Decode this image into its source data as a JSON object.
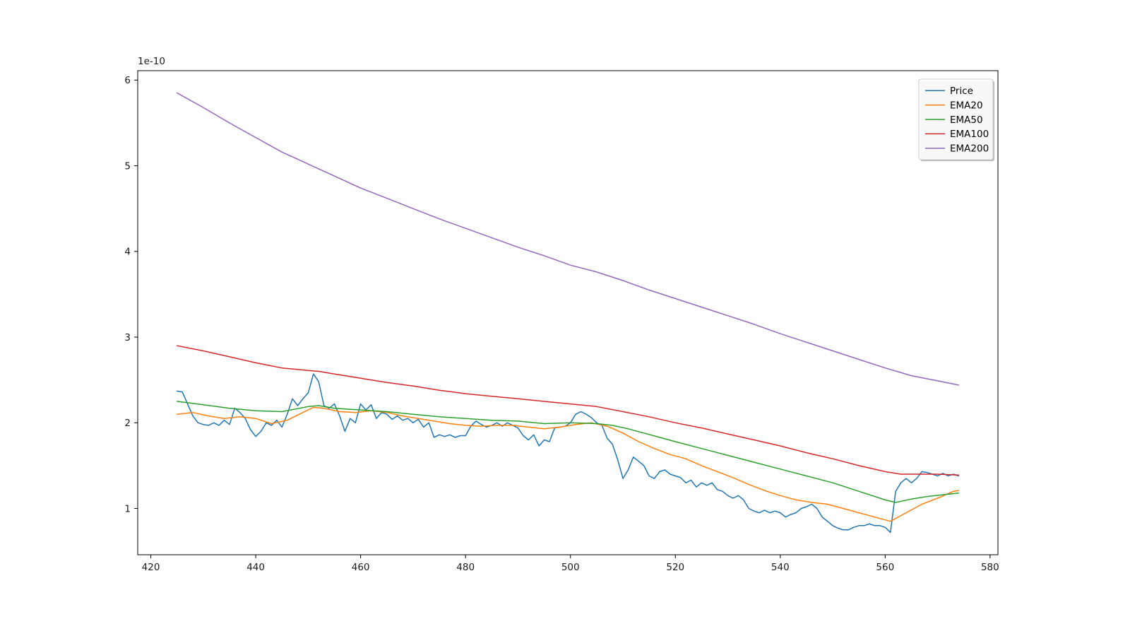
{
  "figure": {
    "background": "#ffffff"
  },
  "chart_data": {
    "type": "line",
    "title": "",
    "xlabel": "",
    "ylabel": "",
    "y_offset_label": "1e-10",
    "xlim": [
      417.5,
      581.5
    ],
    "ylim": [
      0.46,
      6.11
    ],
    "x_ticks": [
      420,
      440,
      460,
      480,
      500,
      520,
      540,
      560,
      580
    ],
    "y_ticks": [
      1,
      2,
      3,
      4,
      5,
      6
    ],
    "grid": false,
    "legend": {
      "position": "upper right",
      "entries": [
        "Price",
        "EMA20",
        "EMA50",
        "EMA100",
        "EMA200"
      ]
    },
    "series": [
      {
        "name": "Price",
        "color": "#1f77b4",
        "x_start": 425,
        "x_step": 1,
        "y": [
          2.37,
          2.36,
          2.22,
          2.08,
          2.0,
          1.98,
          1.97,
          2.0,
          1.97,
          2.03,
          1.98,
          2.17,
          2.12,
          2.05,
          1.92,
          1.84,
          1.9,
          2.0,
          1.97,
          2.03,
          1.95,
          2.1,
          2.28,
          2.2,
          2.28,
          2.35,
          2.57,
          2.48,
          2.2,
          2.17,
          2.22,
          2.08,
          1.9,
          2.05,
          2.0,
          2.22,
          2.15,
          2.21,
          2.05,
          2.12,
          2.1,
          2.04,
          2.08,
          2.03,
          2.05,
          2.0,
          2.04,
          1.95,
          2.0,
          1.83,
          1.86,
          1.84,
          1.86,
          1.83,
          1.85,
          1.85,
          1.96,
          2.02,
          1.98,
          1.95,
          1.97,
          2.0,
          1.96,
          2.0,
          1.97,
          1.94,
          1.85,
          1.8,
          1.86,
          1.73,
          1.8,
          1.78,
          1.94,
          1.95,
          1.96,
          2.0,
          2.1,
          2.13,
          2.1,
          2.06,
          2.0,
          1.97,
          1.82,
          1.75,
          1.57,
          1.35,
          1.45,
          1.6,
          1.55,
          1.5,
          1.38,
          1.35,
          1.43,
          1.45,
          1.4,
          1.38,
          1.36,
          1.3,
          1.33,
          1.25,
          1.3,
          1.27,
          1.3,
          1.22,
          1.2,
          1.15,
          1.12,
          1.15,
          1.1,
          1.0,
          0.97,
          0.95,
          0.98,
          0.95,
          0.97,
          0.95,
          0.9,
          0.93,
          0.95,
          1.0,
          1.02,
          1.05,
          1.0,
          0.9,
          0.85,
          0.8,
          0.77,
          0.75,
          0.75,
          0.78,
          0.8,
          0.8,
          0.82,
          0.8,
          0.8,
          0.78,
          0.72,
          1.2,
          1.3,
          1.35,
          1.3,
          1.35,
          1.43,
          1.42,
          1.4,
          1.38,
          1.41,
          1.38,
          1.4,
          1.38
        ]
      },
      {
        "name": "EMA20",
        "color": "#ff7f0e",
        "x": [
          425,
          428,
          431,
          434,
          437,
          440,
          443,
          446,
          449,
          451,
          453,
          456,
          459,
          462,
          465,
          468,
          471,
          474,
          477,
          480,
          483,
          486,
          489,
          492,
          495,
          498,
          501,
          504,
          507,
          510,
          513,
          516,
          519,
          522,
          525,
          528,
          531,
          534,
          537,
          540,
          543,
          546,
          549,
          552,
          555,
          558,
          561,
          564,
          567,
          570,
          573,
          574
        ],
        "y": [
          2.1,
          2.12,
          2.08,
          2.05,
          2.07,
          2.05,
          1.99,
          2.03,
          2.12,
          2.18,
          2.17,
          2.13,
          2.12,
          2.14,
          2.12,
          2.08,
          2.05,
          2.02,
          1.99,
          1.97,
          1.96,
          1.97,
          1.97,
          1.95,
          1.93,
          1.95,
          1.98,
          2.0,
          1.96,
          1.88,
          1.78,
          1.7,
          1.63,
          1.58,
          1.5,
          1.43,
          1.36,
          1.28,
          1.21,
          1.15,
          1.1,
          1.07,
          1.05,
          1.0,
          0.95,
          0.9,
          0.85,
          0.95,
          1.05,
          1.12,
          1.2,
          1.21
        ]
      },
      {
        "name": "EMA50",
        "color": "#2ca02c",
        "x": [
          425,
          430,
          435,
          440,
          445,
          450,
          452,
          455,
          460,
          465,
          470,
          475,
          480,
          485,
          490,
          495,
          500,
          505,
          508,
          511,
          514,
          517,
          520,
          525,
          530,
          535,
          540,
          545,
          550,
          555,
          560,
          562,
          565,
          568,
          571,
          574
        ],
        "y": [
          2.25,
          2.21,
          2.17,
          2.14,
          2.13,
          2.19,
          2.2,
          2.17,
          2.15,
          2.13,
          2.1,
          2.07,
          2.05,
          2.03,
          2.02,
          1.99,
          2.0,
          1.99,
          1.97,
          1.93,
          1.88,
          1.83,
          1.78,
          1.7,
          1.62,
          1.54,
          1.46,
          1.38,
          1.3,
          1.2,
          1.1,
          1.07,
          1.11,
          1.14,
          1.16,
          1.18
        ]
      },
      {
        "name": "EMA100",
        "color": "#d62728",
        "x": [
          425,
          430,
          435,
          440,
          445,
          450,
          452,
          455,
          460,
          465,
          470,
          475,
          480,
          485,
          490,
          495,
          500,
          505,
          510,
          515,
          520,
          525,
          530,
          535,
          540,
          545,
          550,
          555,
          560,
          563,
          566,
          570,
          574
        ],
        "y": [
          2.9,
          2.84,
          2.77,
          2.7,
          2.64,
          2.61,
          2.6,
          2.57,
          2.52,
          2.47,
          2.43,
          2.38,
          2.34,
          2.31,
          2.28,
          2.25,
          2.22,
          2.19,
          2.13,
          2.07,
          2.0,
          1.94,
          1.87,
          1.8,
          1.73,
          1.65,
          1.58,
          1.5,
          1.43,
          1.4,
          1.4,
          1.4,
          1.39
        ]
      },
      {
        "name": "EMA200",
        "color": "#9467bd",
        "x": [
          425,
          430,
          435,
          440,
          445,
          450,
          455,
          460,
          465,
          470,
          475,
          480,
          485,
          490,
          495,
          500,
          505,
          510,
          515,
          520,
          525,
          530,
          535,
          540,
          545,
          550,
          555,
          560,
          565,
          570,
          574
        ],
        "y": [
          5.85,
          5.68,
          5.5,
          5.33,
          5.16,
          5.02,
          4.88,
          4.74,
          4.62,
          4.5,
          4.38,
          4.27,
          4.16,
          4.05,
          3.95,
          3.84,
          3.76,
          3.66,
          3.55,
          3.45,
          3.35,
          3.25,
          3.15,
          3.04,
          2.94,
          2.84,
          2.74,
          2.64,
          2.55,
          2.49,
          2.44
        ]
      }
    ]
  }
}
